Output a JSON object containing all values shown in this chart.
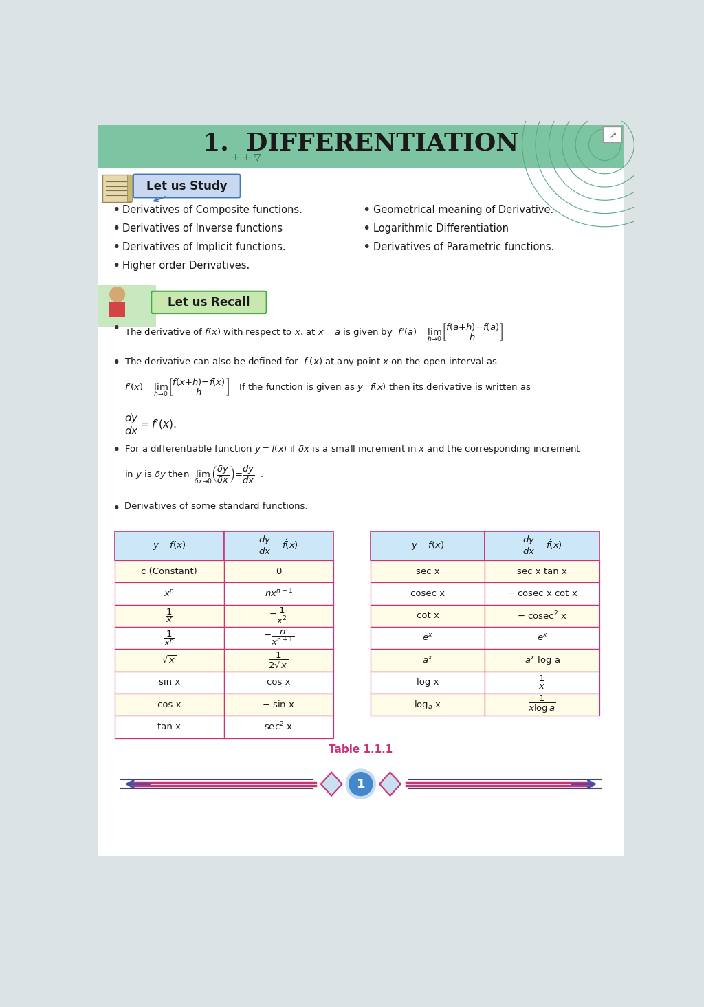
{
  "title": "1.  DIFFERENTIATION",
  "title_bg_top": "#8ecfb0",
  "title_bg_bottom": "#5aaa80",
  "page_bg": "#dce3e5",
  "content_bg": "#ffffff",
  "let_us_study_items_left": [
    "Derivatives of Composite functions.",
    "Derivatives of Inverse functions",
    "Derivatives of Implicit functions.",
    "Higher order Derivatives."
  ],
  "let_us_study_items_right": [
    "Geometrical meaning of Derivative.",
    "Logarithmic Differentiation",
    "Derivatives of Parametric functions."
  ],
  "table_left_rows": [
    [
      "c (Constant)",
      "0"
    ],
    [
      "$x^n$",
      "$nx^{n-1}$"
    ],
    [
      "$\\dfrac{1}{x}$",
      "$-\\dfrac{1}{x^2}$"
    ],
    [
      "$\\dfrac{1}{x^n}$",
      "$-\\dfrac{n}{x^{n+1}}$"
    ],
    [
      "$\\sqrt{x}$",
      "$\\dfrac{1}{2\\sqrt{x}}$"
    ],
    [
      "sin x",
      "cos x"
    ],
    [
      "cos x",
      "$-$ sin x"
    ],
    [
      "tan x",
      "sec$^2$ x"
    ]
  ],
  "table_right_rows": [
    [
      "sec x",
      "sec x tan x"
    ],
    [
      "cosec x",
      "$-$ cosec x cot x"
    ],
    [
      "cot x",
      "$-$ cosec$^2$ x"
    ],
    [
      "$e^x$",
      "$e^x$"
    ],
    [
      "$a^x$",
      "$a^x$ log a"
    ],
    [
      "log x",
      "$\\dfrac{1}{x}$"
    ],
    [
      "log$_a$ x",
      "$\\dfrac{1}{x \\log a}$"
    ]
  ],
  "table_caption": "Table 1.1.1",
  "table_header_bg": "#cce8f8",
  "table_row_bg_odd": "#fffde7",
  "table_row_bg_even": "#ffffff",
  "table_border_color": "#cc3377",
  "bullet_color": "#333333",
  "accent_color": "#cc3377",
  "nav_line_color": "#cc3377",
  "nav_outer_color": "#333355"
}
